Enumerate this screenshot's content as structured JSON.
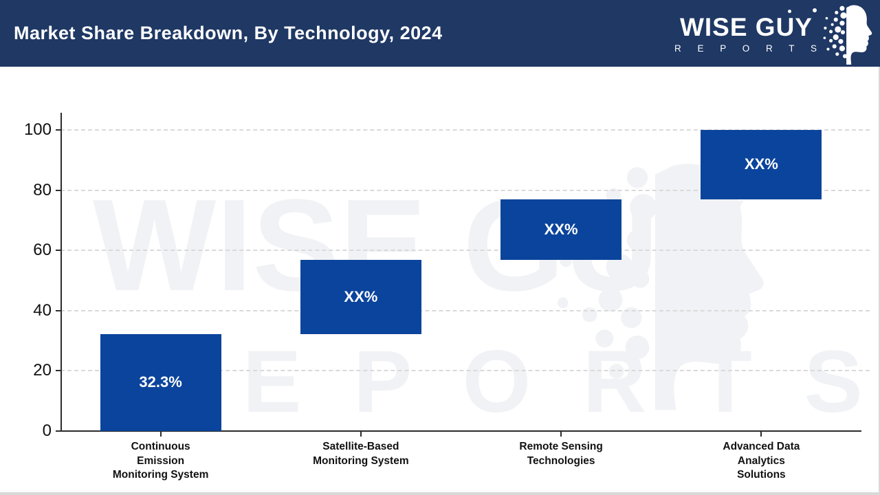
{
  "header": {
    "title": "Market Share Breakdown, By Technology, 2024",
    "bg_color": "#1F3864",
    "logo": {
      "line1": "WISE GUY",
      "line2": "R E P O R T S"
    }
  },
  "watermark": {
    "line1": "WISE GUY",
    "line2": "R E P O R T S"
  },
  "chart_data": {
    "type": "bar",
    "subtype": "waterfall",
    "title": "Market Share Breakdown, By Technology, 2024",
    "xlabel": "",
    "ylabel": "",
    "ylim": [
      0,
      100
    ],
    "y_ticks": [
      0,
      20,
      40,
      60,
      80,
      100
    ],
    "grid": "horizontal-dashed",
    "legend": "none",
    "bar_color": "#0B449C",
    "grid_color": "#d9d9d9",
    "axis_color": "#2b2b2b",
    "categories": [
      "Continuous Emission Monitoring System",
      "Satellite-Based Monitoring System",
      "Remote Sensing Technologies",
      "Advanced Data Analytics Solutions"
    ],
    "category_lines": [
      [
        "Continuous",
        "Emission",
        "Monitoring System"
      ],
      [
        "Satellite-Based",
        "Monitoring System"
      ],
      [
        "Remote Sensing",
        "Technologies"
      ],
      [
        "Advanced Data",
        "Analytics",
        "Solutions"
      ]
    ],
    "bars": [
      {
        "category": "Continuous Emission Monitoring System",
        "label": "32.3%",
        "start": 0,
        "end": 32.3
      },
      {
        "category": "Satellite-Based Monitoring System",
        "label": "XX%",
        "start": 32.3,
        "end": 56.8
      },
      {
        "category": "Remote Sensing Technologies",
        "label": "XX%",
        "start": 56.8,
        "end": 77
      },
      {
        "category": "Advanced Data Analytics Solutions",
        "label": "XX%",
        "start": 77,
        "end": 100
      }
    ]
  }
}
